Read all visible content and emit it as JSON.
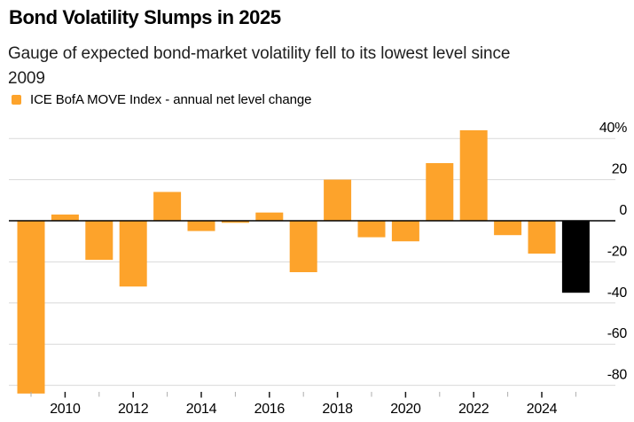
{
  "header": {
    "title": "Bond Volatility Slumps in 2025",
    "subtitle_lines": [
      "Gauge of expected bond-market volatility fell to its lowest level since",
      "2009"
    ]
  },
  "legend": {
    "swatch_color": "#FDA32B",
    "label": "ICE BofA MOVE Index - annual net level change"
  },
  "chart_data": {
    "type": "bar",
    "title": "Bond Volatility Slumps in 2025",
    "subtitle": "Gauge of expected bond-market volatility fell to its lowest level since 2009",
    "series": [
      {
        "name": "ICE BofA MOVE Index - annual net level change",
        "values": [
          -84,
          3,
          -19,
          -32,
          14,
          -5,
          -1,
          4,
          -25,
          20,
          -8,
          -10,
          28,
          44,
          -7,
          -16,
          -35
        ]
      }
    ],
    "x": [
      2009,
      2010,
      2011,
      2012,
      2013,
      2014,
      2015,
      2016,
      2017,
      2018,
      2019,
      2020,
      2021,
      2022,
      2023,
      2024,
      2025
    ],
    "highlight_year": 2025,
    "xtick_labels": [
      "2010",
      "2012",
      "2014",
      "2016",
      "2018",
      "2020",
      "2022",
      "2024"
    ],
    "ytick_values": [
      40,
      20,
      0,
      -20,
      -40,
      -60,
      -80
    ],
    "ytick_labels": [
      "40%",
      "20",
      "0",
      "-20",
      "-40",
      "-60",
      "-80"
    ],
    "ylim": [
      -84,
      46
    ],
    "grid": true,
    "legend_position": "top-left",
    "colors": {
      "bar": "#FDA32B",
      "highlight_bar": "#000000",
      "grid": "#D9D9D9",
      "zero_line": "#000000",
      "tick_major": "#1a1a1a",
      "tick_minor": "#ADADAD",
      "text": "#000000"
    }
  }
}
